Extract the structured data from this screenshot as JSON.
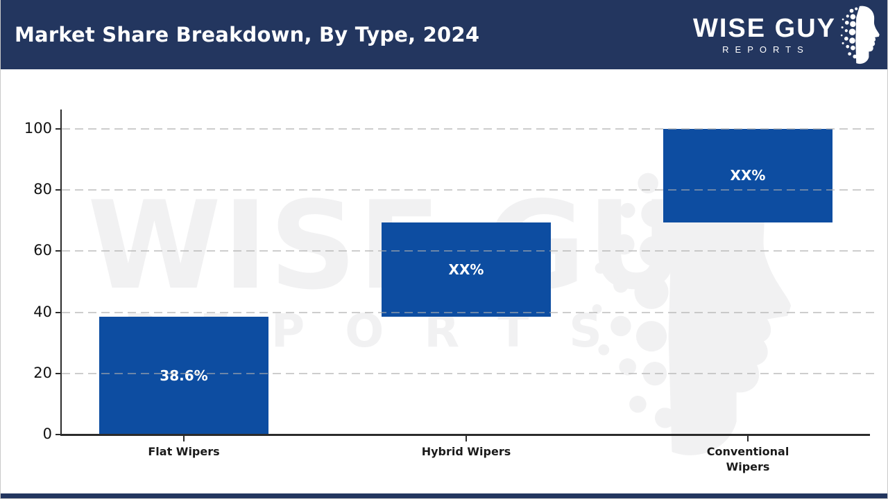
{
  "header": {
    "title": "Market Share Breakdown, By Type, 2024",
    "logo": {
      "name": "WISE GUY",
      "subname": "REPORTS"
    }
  },
  "watermark": {
    "name": "WISE GUY",
    "subname": "REPORTS"
  },
  "chart_data": {
    "type": "bar",
    "variant": "waterfall",
    "title": "Market Share Breakdown, By Type, 2024",
    "categories": [
      "Flat Wipers",
      "Hybrid Wipers",
      "Conventional Wipers"
    ],
    "segments": [
      {
        "category": "Flat Wipers",
        "start": 0,
        "end": 38.6,
        "label": "38.6%"
      },
      {
        "category": "Hybrid Wipers",
        "start": 38.6,
        "end": 69.4,
        "label": "XX%"
      },
      {
        "category": "Conventional Wipers",
        "start": 69.4,
        "end": 100,
        "label": "XX%"
      }
    ],
    "yticks": [
      0,
      20,
      40,
      60,
      80,
      100
    ],
    "ylim": [
      0,
      105
    ],
    "xlabel": "",
    "ylabel": "",
    "grid": "horizontal-dashed",
    "legend": "none",
    "bar_color": "#0d4da1"
  },
  "colors": {
    "header_bg": "#23365f",
    "footer_bg": "#23365f",
    "bar": "#0d4da1",
    "axis": "#2b2b2b",
    "watermark": "#f1f1f2"
  }
}
